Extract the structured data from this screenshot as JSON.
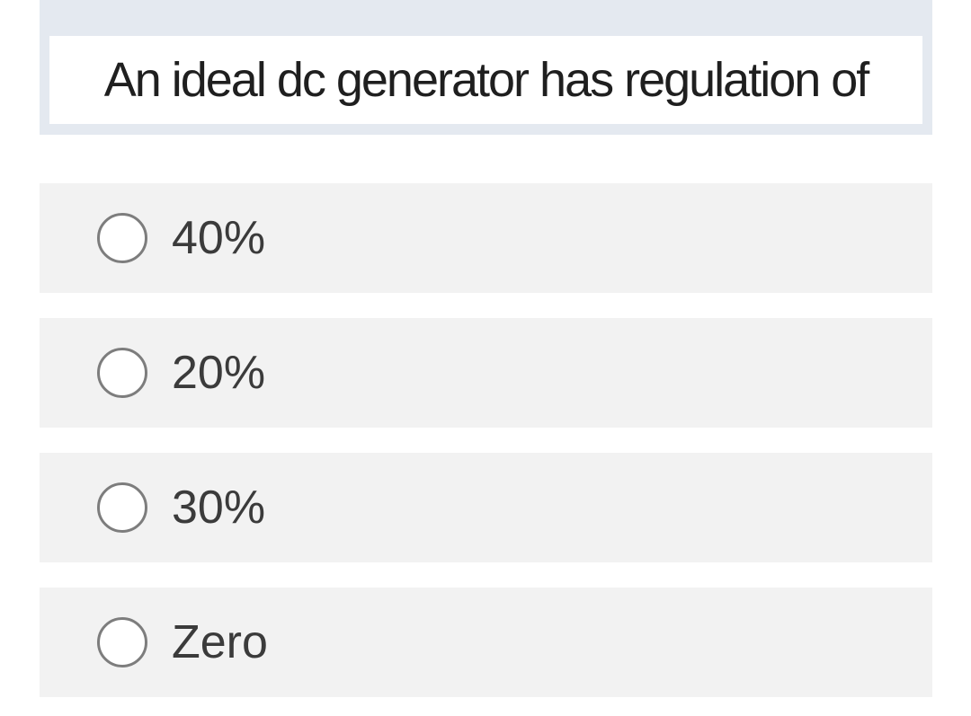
{
  "question": {
    "text": "An ideal dc generator has regulation of"
  },
  "options": [
    {
      "label": "40%",
      "selected": false
    },
    {
      "label": "20%",
      "selected": false
    },
    {
      "label": "30%",
      "selected": false
    },
    {
      "label": "Zero",
      "selected": false
    }
  ],
  "colors": {
    "page_bg": "#ffffff",
    "question_card_bg": "#e4e9f0",
    "question_inner_bg": "#ffffff",
    "question_text": "#1f1f1f",
    "option_row_bg": "#f2f2f2",
    "radio_border": "#7d7d7d",
    "radio_fill": "#ffffff",
    "option_text": "#3b3b3b"
  }
}
